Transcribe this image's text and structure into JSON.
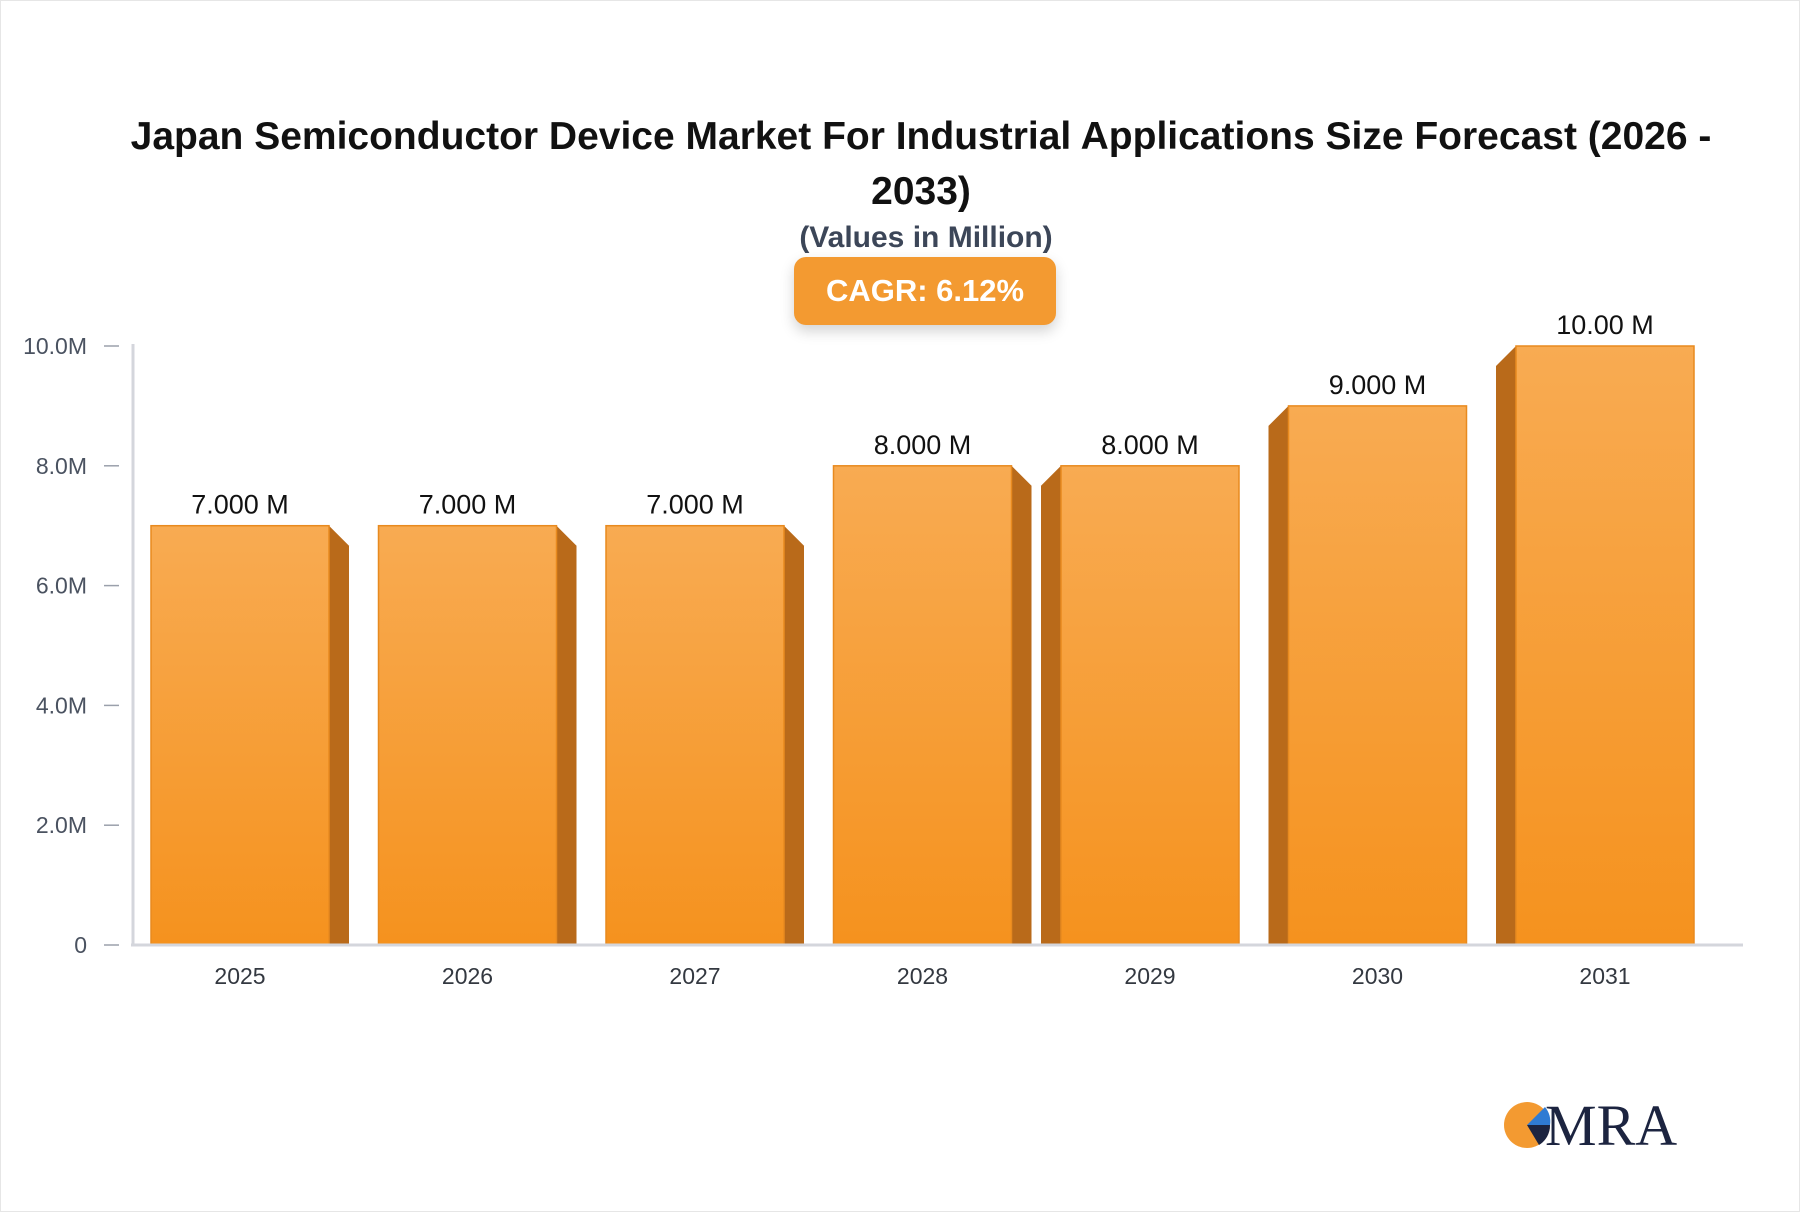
{
  "chart_data": {
    "type": "bar",
    "title": "Japan Semiconductor Device Market For Industrial Applications Size Forecast (2026 - 2033)",
    "subtitle": "(Values in Million)",
    "badge": "CAGR: 6.12%",
    "categories": [
      "2025",
      "2026",
      "2027",
      "2028",
      "2029",
      "2030",
      "2031"
    ],
    "values": [
      7.0,
      7.0,
      7.0,
      8.0,
      8.0,
      9.0,
      10.0
    ],
    "data_labels": [
      "7.000 M",
      "7.000 M",
      "7.000 M",
      "8.000 M",
      "8.000 M",
      "9.000 M",
      "10.00 M"
    ],
    "yticks": [
      0,
      2,
      4,
      6,
      8,
      10
    ],
    "ytick_labels": [
      "0",
      "2.0M",
      "4.0M",
      "6.0M",
      "8.0M",
      "10.0M"
    ],
    "ylim": [
      0,
      10
    ],
    "grid": false,
    "colors": {
      "bar_top": "#f8ab52",
      "bar_bottom": "#f5921e",
      "bar_side": "#b96a1a",
      "badge": "#f39a31",
      "axis": "#d4d6dc"
    }
  },
  "logo": {
    "text": "MRA",
    "colors": {
      "orange": "#f39a31",
      "blue": "#2f7bd3",
      "navy": "#1c2440"
    }
  }
}
